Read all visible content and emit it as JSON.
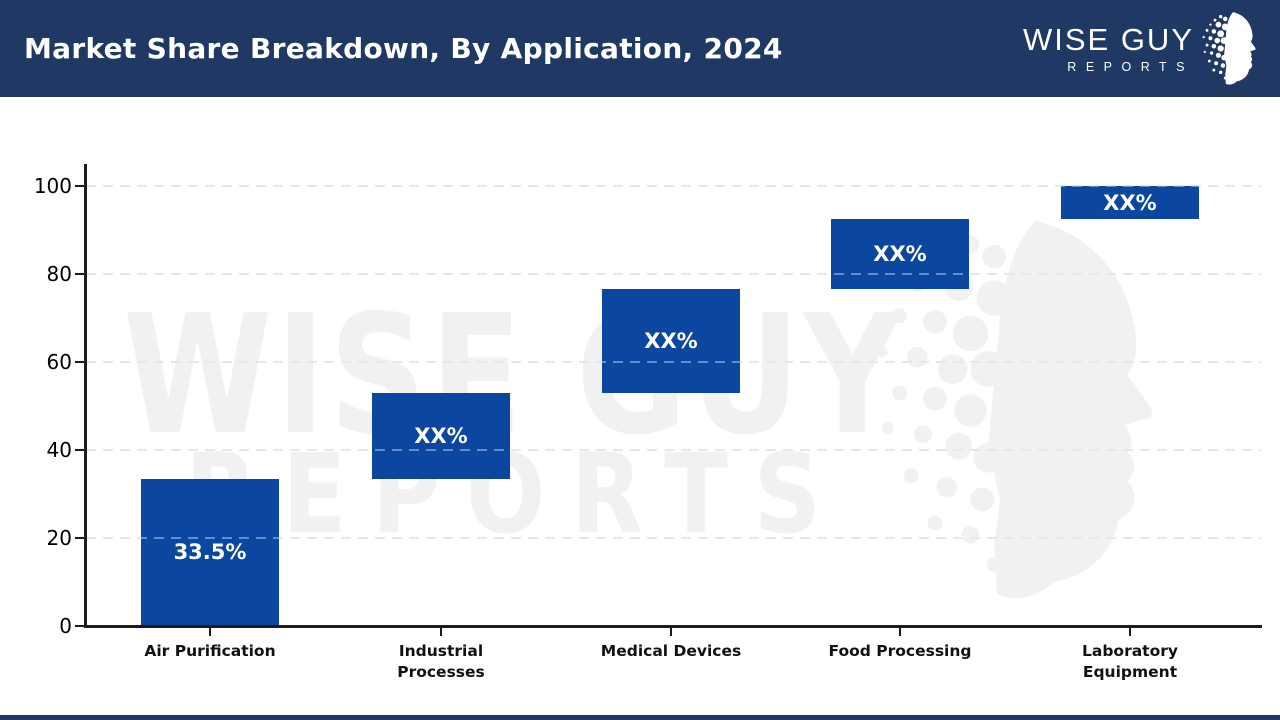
{
  "colors": {
    "header_bg": "#1f3864",
    "footer_bg": "#1f3864",
    "bar": "#0b46a1",
    "bar_label": "#ffffff",
    "grid": "#d8d8d8",
    "axis": "#1c1c1c",
    "watermark": "#f1f1f4",
    "title_text": "#ffffff"
  },
  "header": {
    "title": "Market Share Breakdown, By Application, 2024",
    "logo": {
      "wordmark": "WISE GUY",
      "subtext": "REPORTS"
    }
  },
  "watermark": {
    "wordmark": "WISE GUY",
    "subtext": "REPORTS"
  },
  "chart_data": {
    "type": "bar",
    "subtype": "waterfall",
    "title": "Market Share Breakdown, By Application, 2024",
    "xlabel": "",
    "ylabel": "",
    "ylim": [
      0,
      100
    ],
    "yticks": [
      0,
      20,
      40,
      60,
      80,
      100
    ],
    "grid": "horizontal-dashed",
    "legend": "none",
    "bar_color": "#0b46a1",
    "categories": [
      "Air Purification",
      "Industrial Processes",
      "Medical Devices",
      "Food Processing",
      "Laboratory Equipment"
    ],
    "category_label_lines": [
      [
        "Air Purification"
      ],
      [
        "Industrial",
        "Processes"
      ],
      [
        "Medical Devices"
      ],
      [
        "Food Processing"
      ],
      [
        "Laboratory",
        "Equipment"
      ]
    ],
    "segments": [
      {
        "category": "Air Purification",
        "start": 0,
        "end": 33.5,
        "label": "33.5%"
      },
      {
        "category": "Industrial Processes",
        "start": 33.5,
        "end": 53,
        "label": "XX%"
      },
      {
        "category": "Medical Devices",
        "start": 53,
        "end": 76.5,
        "label": "XX%"
      },
      {
        "category": "Food Processing",
        "start": 76.5,
        "end": 92.5,
        "label": "XX%"
      },
      {
        "category": "Laboratory Equipment",
        "start": 92.5,
        "end": 100,
        "label": "XX%"
      }
    ]
  }
}
